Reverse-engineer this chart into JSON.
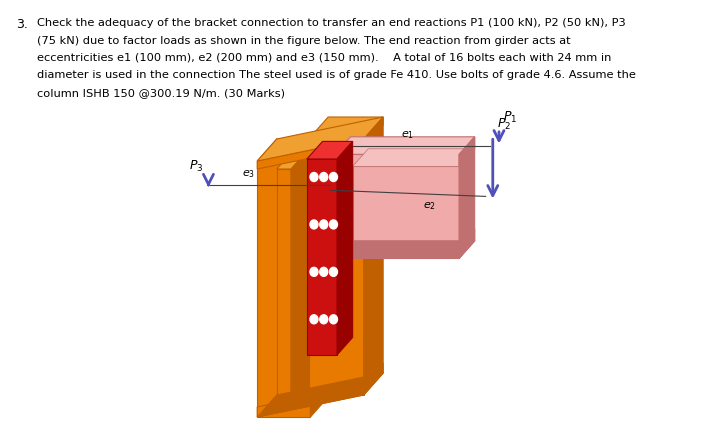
{
  "bg_color": "#ffffff",
  "text_color": "#000000",
  "orange_face": "#E87A00",
  "orange_top": "#F0A030",
  "orange_side": "#C06000",
  "red_face": "#CC1010",
  "red_top": "#EE3030",
  "red_side": "#990000",
  "pink_face": "#F0AAAA",
  "pink_top": "#F5C0C0",
  "pink_side": "#C07070",
  "arrow_color": "#5050BB",
  "line_color": "#404040",
  "text_lines": [
    "Check the adequacy of the bracket connection to transfer an end reactions P1 (100 kN), P2 (50 kN), P3",
    "(75 kN) due to factor loads as shown in the figure below. The end reaction from girder acts at",
    "eccentricities e1 (100 mm), e2 (200 mm) and e3 (150 mm).    A total of 16 bolts each with 24 mm in",
    "diameter is used in the connection The steel used is of grade Fe 410. Use bolts of grade 4.6. Assume the",
    "column ISHB 150 @300.19 N/m. (30 Marks)"
  ]
}
